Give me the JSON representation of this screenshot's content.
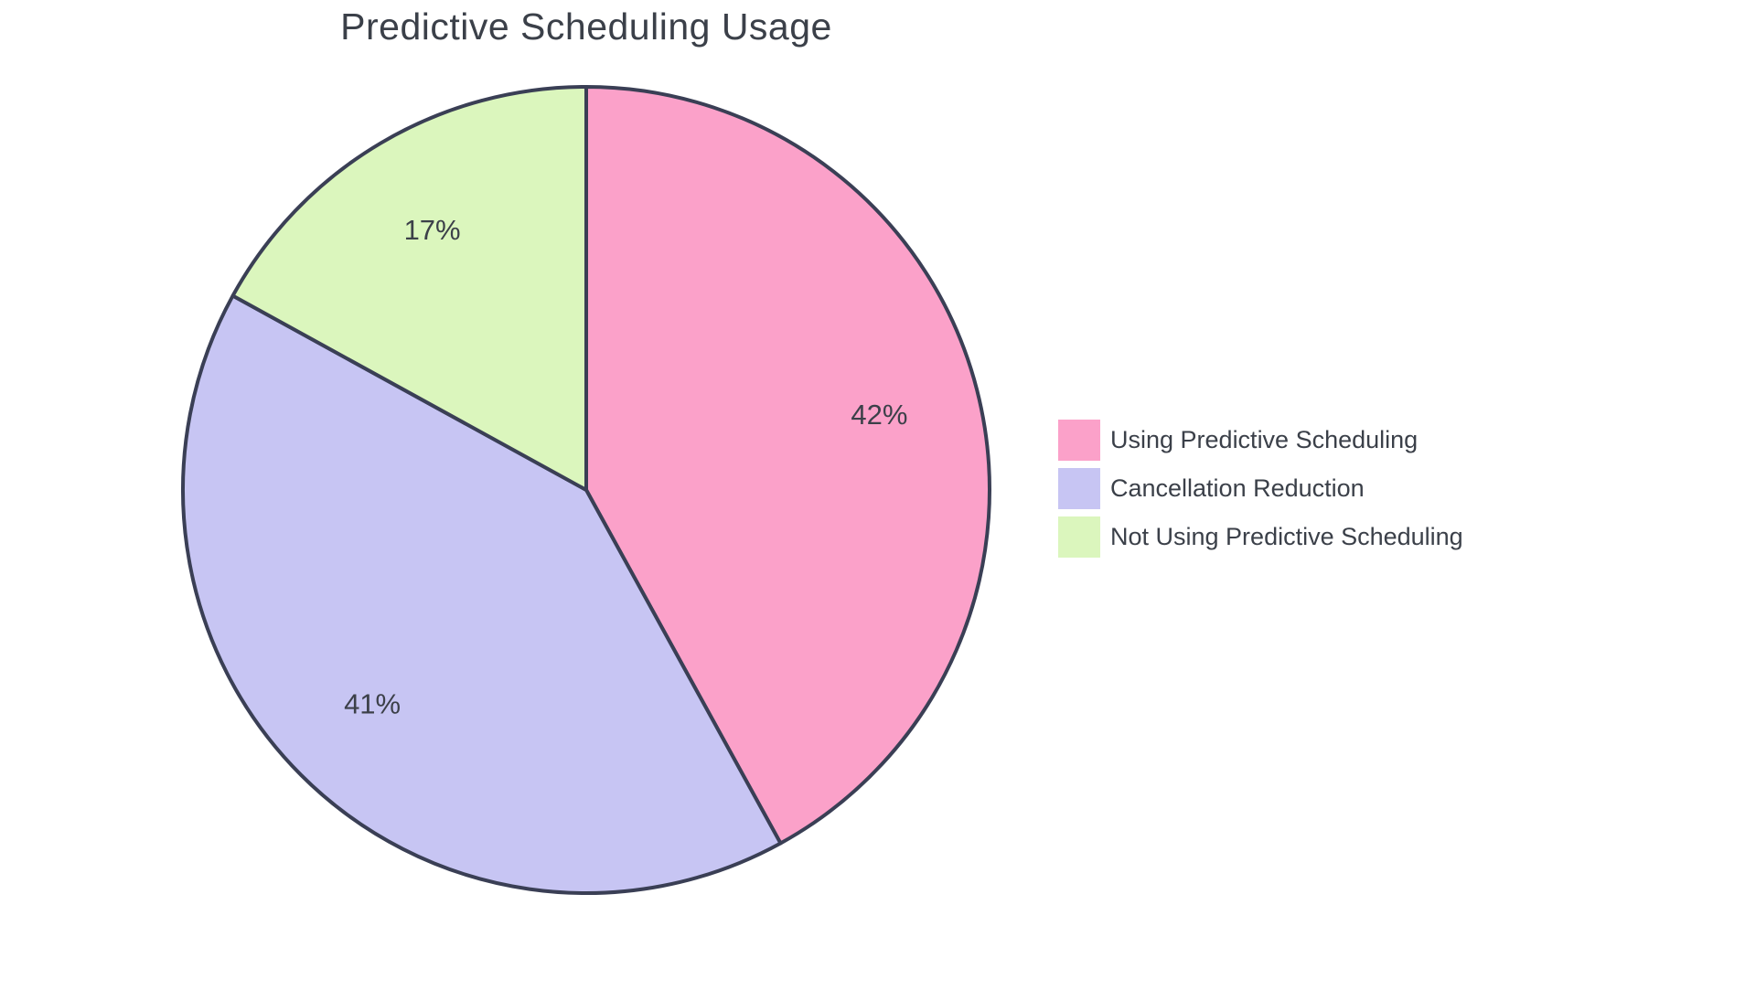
{
  "chart_data": {
    "type": "pie",
    "title": "Predictive Scheduling Usage",
    "slices": [
      {
        "label": "Using Predictive Scheduling",
        "value": 42,
        "pct_label": "42%",
        "color": "#FBA1C9"
      },
      {
        "label": "Cancellation Reduction",
        "value": 41,
        "pct_label": "41%",
        "color": "#C7C5F3"
      },
      {
        "label": "Not Using Predictive Scheduling",
        "value": 17,
        "pct_label": "17%",
        "color": "#DBF6BD"
      }
    ],
    "start_angle": "top",
    "direction": "clockwise",
    "edge_color": "#3A3F55",
    "edge_width": 4,
    "label_radius_ratio": 0.75,
    "text_color": "#3C4049",
    "legend_position": "right",
    "background": "#FFFFFF"
  }
}
